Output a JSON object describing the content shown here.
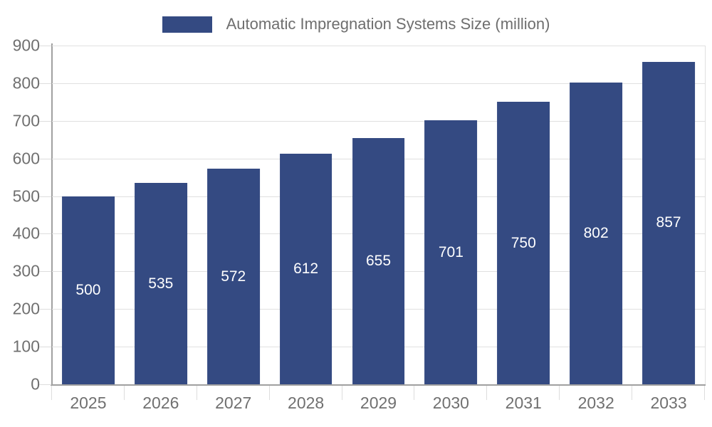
{
  "chart_data": {
    "type": "bar",
    "legend": "Automatic Impregnation Systems Size (million)",
    "legend_position": "top",
    "categories": [
      "2025",
      "2026",
      "2027",
      "2028",
      "2029",
      "2030",
      "2031",
      "2032",
      "2033"
    ],
    "values": [
      500,
      535,
      572,
      612,
      655,
      701,
      750,
      802,
      857
    ],
    "value_labels_inside_bars": true,
    "xlabel": "",
    "ylabel": "",
    "ylim": [
      0,
      900
    ],
    "ytick_step": 100,
    "grid": true,
    "colors": {
      "bar": "#344A82",
      "grid_line": "#E0E0E0",
      "axis_line": "#A0A0A0",
      "tick": "#DDDDDD",
      "axis_label": "#707070",
      "legend_text": "#6E6E6E",
      "value_label": "#FFFFFF",
      "background": "#FFFFFF"
    }
  }
}
